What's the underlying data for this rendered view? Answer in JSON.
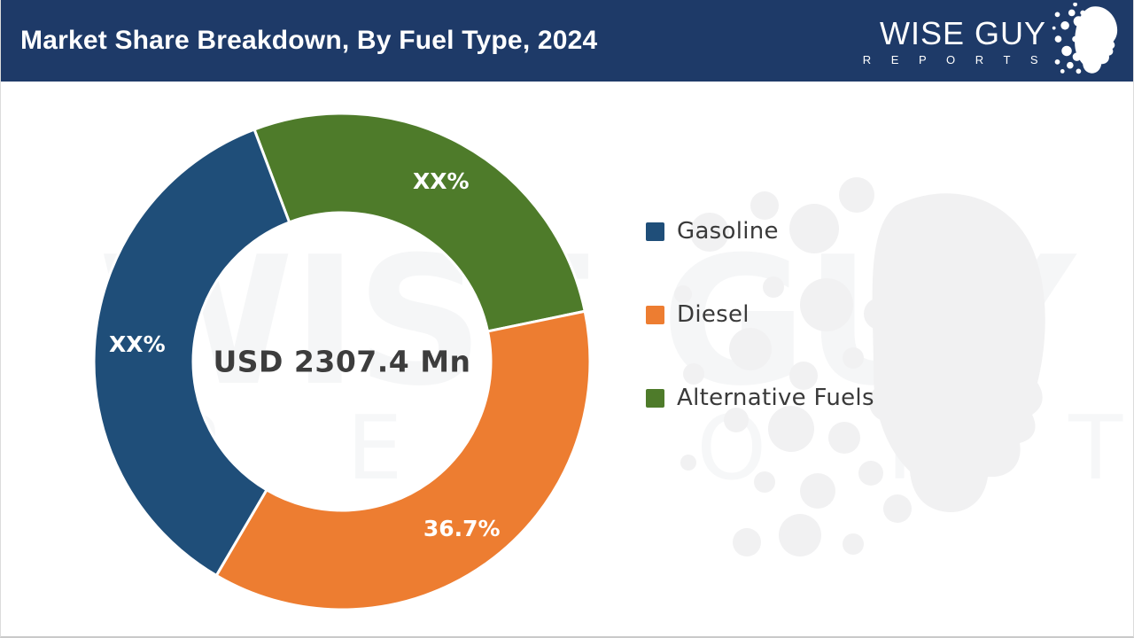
{
  "header": {
    "title": "Market Share Breakdown, By Fuel Type, 2024",
    "logo": {
      "wordmark": "WISE GUY",
      "subtext": "R E P O R T S"
    }
  },
  "watermark": {
    "wordmark": "WISE GUY",
    "subtext": "R E P O R T S"
  },
  "chart_data": {
    "type": "pie",
    "subtype": "donut",
    "title": "Market Share Breakdown, By Fuel Type, 2024",
    "center_label": "USD 2307.4 Mn",
    "legend_position": "right",
    "start_angle_deg": -20.7,
    "segments": [
      {
        "label": "Alternative Fuels",
        "value_pct": 27.5,
        "display": "XX%",
        "color": "#4e7b2a"
      },
      {
        "label": "Diesel",
        "value_pct": 36.7,
        "display": "36.7%",
        "color": "#ed7d31"
      },
      {
        "label": "Gasoline",
        "value_pct": 35.8,
        "display": "XX%",
        "color": "#1f4e79"
      }
    ]
  },
  "colors": {
    "header_bg": "#1e3a68",
    "center_text": "#3d3d3d",
    "legend_text": "#3a3a3a",
    "segment_gap": "#ffffff"
  }
}
